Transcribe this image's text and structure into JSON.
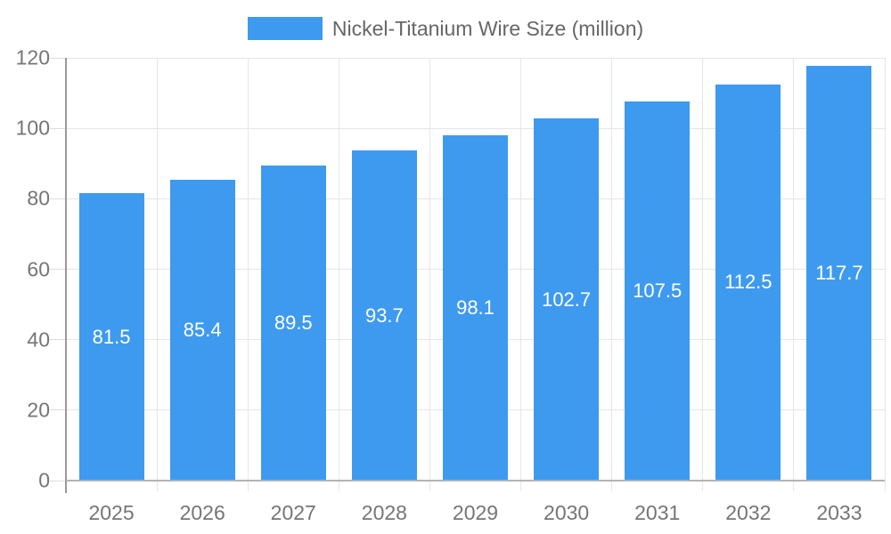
{
  "chart_data": {
    "type": "bar",
    "title": "",
    "legend": {
      "label": "Nickel-Titanium Wire Size (million)",
      "position": "top-center"
    },
    "categories": [
      "2025",
      "2026",
      "2027",
      "2028",
      "2029",
      "2030",
      "2031",
      "2032",
      "2033"
    ],
    "series": [
      {
        "name": "Nickel-Titanium Wire Size (million)",
        "values": [
          81.5,
          85.4,
          89.5,
          93.7,
          98.1,
          102.7,
          107.5,
          112.5,
          117.7
        ]
      }
    ],
    "value_labels": [
      "81.5",
      "85.4",
      "89.5",
      "93.7",
      "98.1",
      "102.7",
      "107.5",
      "112.5",
      "117.7"
    ],
    "xlabel": "",
    "ylabel": "",
    "ylim": [
      0,
      120
    ],
    "yticks": [
      0,
      20,
      40,
      60,
      80,
      100,
      120
    ],
    "grid": true,
    "colors": {
      "bar": "#3E9AEF",
      "grid": "#e6e6e6",
      "y_axis_line": "#999999",
      "x_axis_line": "#b3b3b3",
      "y_tick": "#dcdcdc",
      "tick_text": "#757575",
      "legend_text": "#666666",
      "value_label_text": "#ffffff",
      "background": "#ffffff"
    }
  }
}
